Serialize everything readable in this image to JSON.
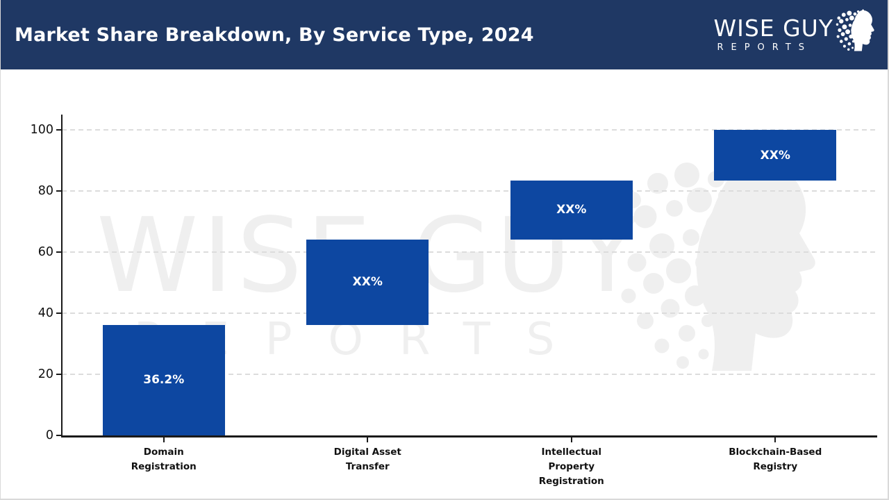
{
  "header": {
    "title": "Market Share Breakdown, By Service Type, 2024",
    "bg_color": "#1f3864",
    "logo_line1": "WISE GUY",
    "logo_line2": "REPORTS",
    "logo_color": "#ffffff"
  },
  "watermark": {
    "line1": "WISE GUY",
    "line2": "REPORTS",
    "color": "#efefef"
  },
  "chart_data": {
    "type": "bar",
    "subtype": "waterfall-floating-segments",
    "title": "Market Share Breakdown, By Service Type, 2024",
    "categories": [
      "Domain Registration",
      "Digital Asset Transfer",
      "Intellectual Property Registration",
      "Blockchain-Based Registry"
    ],
    "category_lines": [
      [
        "Domain",
        "Registration"
      ],
      [
        "Digital Asset",
        "Transfer"
      ],
      [
        "Intellectual",
        "Property",
        "Registration"
      ],
      [
        "Blockchain-Based",
        "Registry"
      ]
    ],
    "segments": [
      {
        "category": "Domain Registration",
        "start": 0,
        "end": 36.2,
        "label": "36.2%"
      },
      {
        "category": "Digital Asset Transfer",
        "start": 36.2,
        "end": 64.1,
        "label": "XX%"
      },
      {
        "category": "Intellectual Property Registration",
        "start": 64.1,
        "end": 83.4,
        "label": "XX%"
      },
      {
        "category": "Blockchain-Based Registry",
        "start": 83.4,
        "end": 100,
        "label": "XX%"
      }
    ],
    "yticks": [
      0,
      20,
      40,
      60,
      80,
      100
    ],
    "ylim": [
      0,
      105
    ],
    "xlabel": "",
    "ylabel": "",
    "bar_color": "#0d47a1",
    "bar_label_color": "#ffffff",
    "grid": "horizontal-dashed",
    "legend": "none"
  }
}
